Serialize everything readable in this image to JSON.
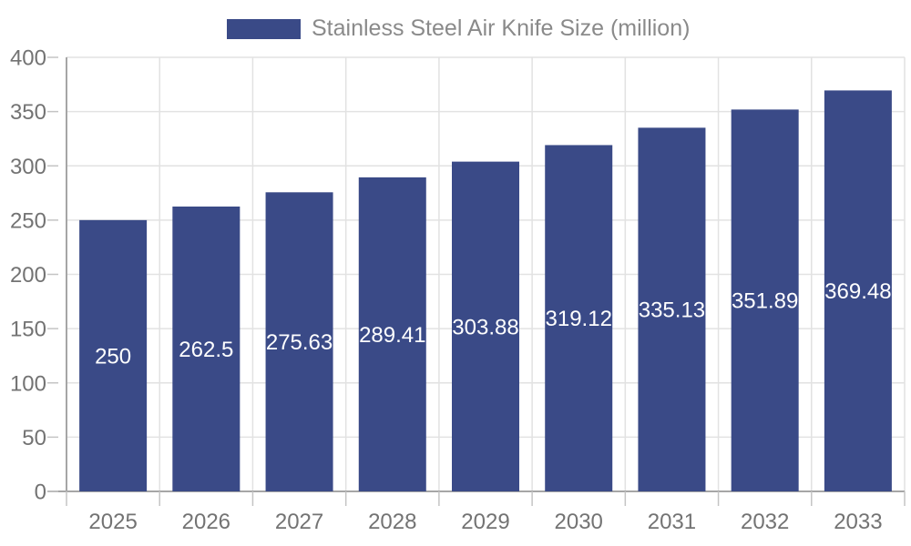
{
  "chart_data": {
    "type": "bar",
    "title": "Stainless Steel Air Knife Size (million)",
    "series_name": "Stainless Steel Air Knife Size (million)",
    "categories": [
      "2025",
      "2026",
      "2027",
      "2028",
      "2029",
      "2030",
      "2031",
      "2032",
      "2033"
    ],
    "values": [
      250,
      262.5,
      275.63,
      289.41,
      303.88,
      319.12,
      335.13,
      351.89,
      369.48
    ],
    "xlabel": "",
    "ylabel": "",
    "ylim": [
      0,
      400
    ],
    "yticks": [
      0,
      50,
      100,
      150,
      200,
      250,
      300,
      350,
      400
    ],
    "grid": true,
    "legend_position": "top",
    "bar_labels_inside": true,
    "colors": {
      "bar": "#3a4a87",
      "bar_label": "#ffffff",
      "grid": "#e2e2e2",
      "axis_line": "#a6a6a6",
      "tick": "#c4c4c4",
      "axis_label": "#737373",
      "title": "#8a8a8a",
      "background": "#ffffff"
    }
  }
}
